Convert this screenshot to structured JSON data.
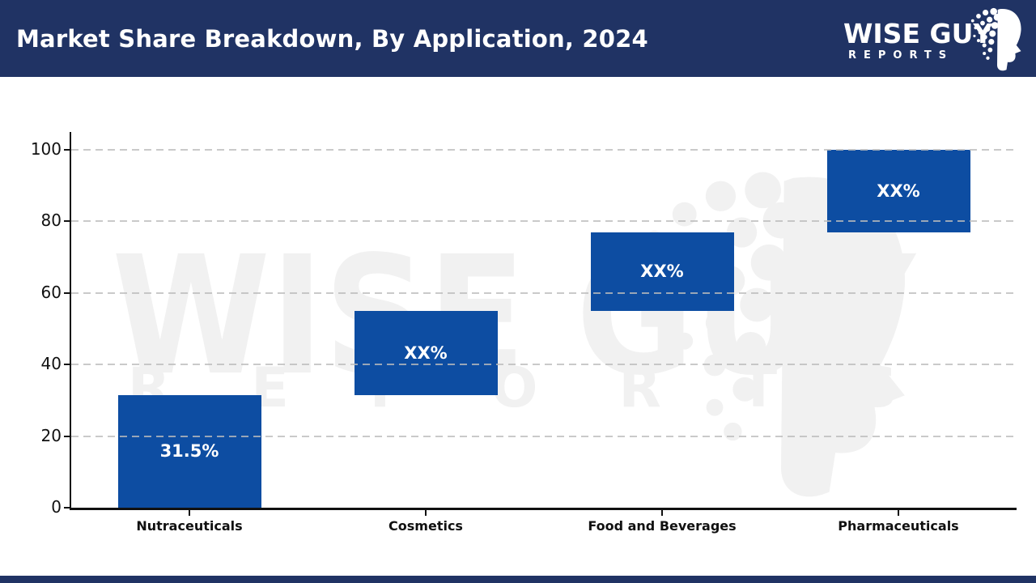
{
  "header": {
    "title": "Market Share Breakdown, By Application, 2024",
    "logo_line1": "WISE GUY",
    "logo_line2": "REPORTS"
  },
  "watermark": {
    "line1": "WISE GUY",
    "line2": "REPORTS"
  },
  "chart_data": {
    "type": "bar",
    "variant": "waterfall-market-share",
    "title": "Market Share Breakdown, By Application, 2024",
    "categories": [
      "Nutraceuticals",
      "Cosmetics",
      "Food and Beverages",
      "Pharmaceuticals"
    ],
    "series": [
      {
        "name": "Market Share",
        "segments": [
          {
            "category": "Nutraceuticals",
            "start": 0,
            "end": 31.5,
            "label": "31.5%"
          },
          {
            "category": "Cosmetics",
            "start": 31.5,
            "end": 55,
            "label": "XX%"
          },
          {
            "category": "Food and Beverages",
            "start": 55,
            "end": 77,
            "label": "XX%"
          },
          {
            "category": "Pharmaceuticals",
            "start": 77,
            "end": 100,
            "label": "XX%"
          }
        ]
      }
    ],
    "xlabel": "",
    "ylabel": "",
    "ylim": [
      0,
      100
    ],
    "yticks": [
      0,
      20,
      40,
      60,
      80,
      100
    ],
    "grid": "horizontal-dashed-over-bars",
    "legend": "none"
  },
  "colors": {
    "header_bg": "#203364",
    "footer_bg": "#203364",
    "bar": "#0d4da2",
    "bar_label": "#ffffff",
    "axis": "#111111",
    "tick_text": "#111111",
    "grid": "#cccccc",
    "watermark": "#f1f1f1",
    "background": "#ffffff"
  }
}
